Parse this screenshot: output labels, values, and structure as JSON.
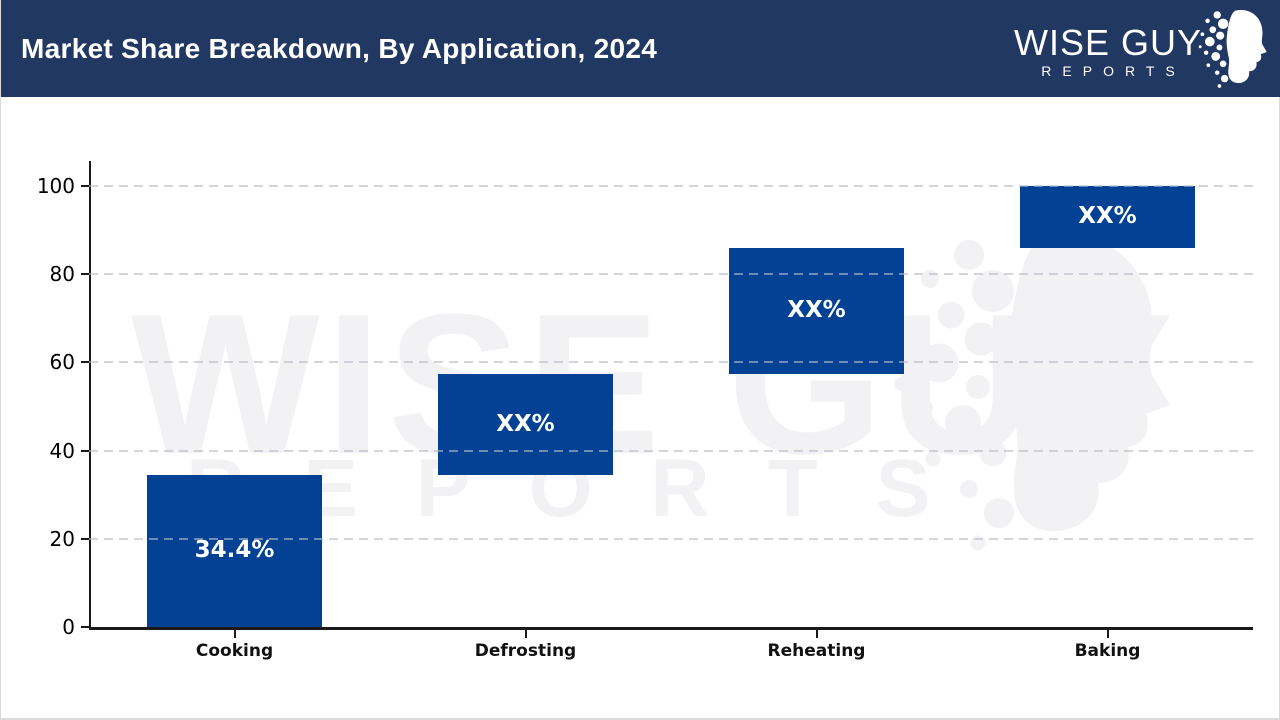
{
  "header": {
    "title": "Market Share Breakdown, By Application, 2024",
    "bg_color": "#203862",
    "logo": {
      "line1": "WISE GUY",
      "line2": "REPORTS"
    }
  },
  "watermark": {
    "line1": "WISE GUY",
    "line2": "REPORTS"
  },
  "chart_data": {
    "type": "bar",
    "subtype": "waterfall",
    "title": "Market Share Breakdown, By Application, 2024",
    "categories": [
      "Cooking",
      "Defrosting",
      "Reheating",
      "Baking"
    ],
    "segments": [
      {
        "category": "Cooking",
        "start": 0,
        "end": 34.4,
        "label": "34.4%"
      },
      {
        "category": "Defrosting",
        "start": 34.4,
        "end": 57.4,
        "label": "XX%"
      },
      {
        "category": "Reheating",
        "start": 57.4,
        "end": 86.0,
        "label": "XX%"
      },
      {
        "category": "Baking",
        "start": 86.0,
        "end": 100,
        "label": "XX%"
      }
    ],
    "ylim": [
      0,
      100
    ],
    "yticks": [
      0,
      20,
      40,
      60,
      80,
      100
    ],
    "xlabel": "",
    "ylabel": "",
    "legend": null,
    "grid": "horizontal-dashed",
    "colors": {
      "bar": "#024194",
      "bar_label": "#ffffff",
      "grid": "#d9d9de",
      "axis": "#1a1a1a",
      "tick_label": "#000000"
    }
  }
}
